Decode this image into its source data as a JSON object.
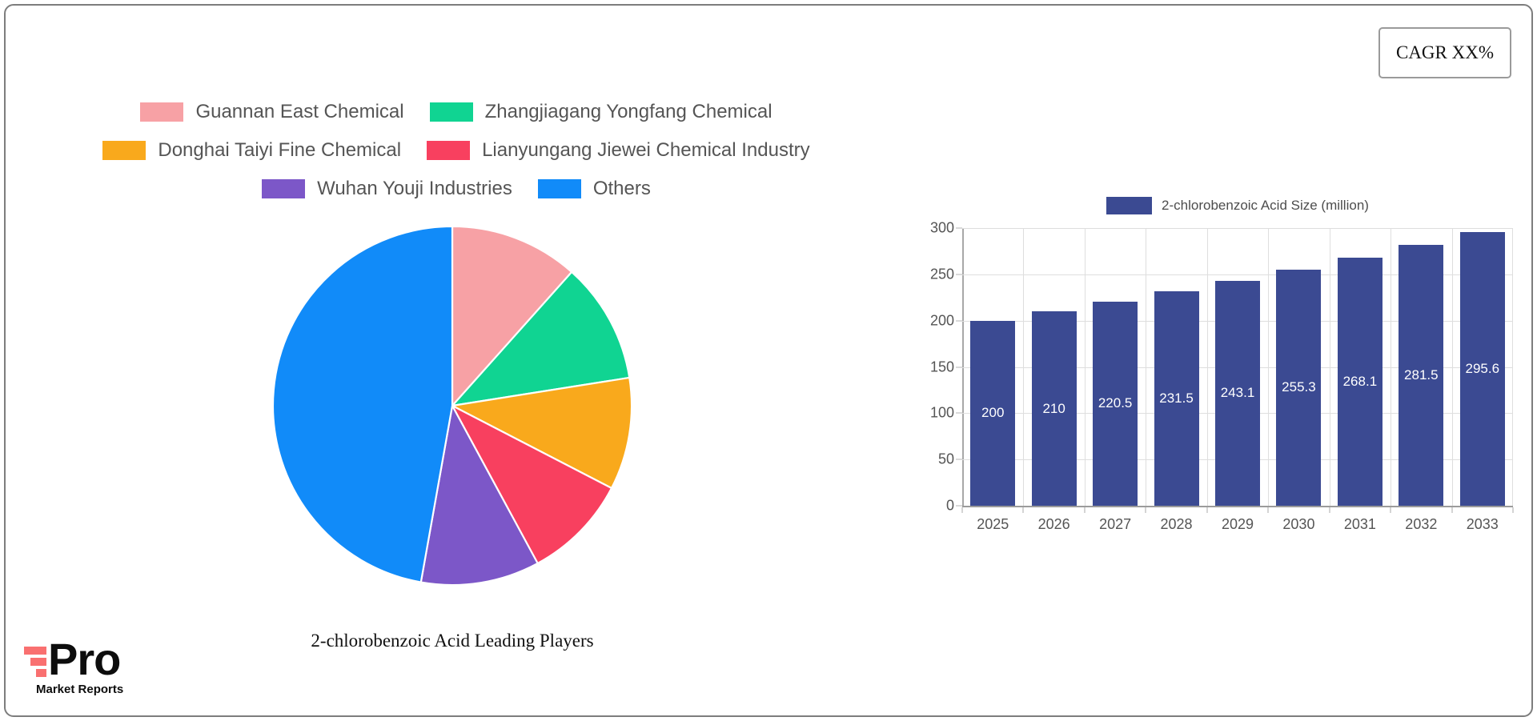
{
  "cagr_badge": "CAGR XX%",
  "logo": {
    "name": "Pro",
    "subtitle": "Market Reports",
    "bar_color": "#F97070"
  },
  "chart_data": [
    {
      "type": "pie",
      "title": "2-chlorobenzoic Acid Leading Players",
      "labels": [
        "Guannan East Chemical",
        "Zhangjiagang Yongfang Chemical",
        "Donghai Taiyi Fine Chemical",
        "Lianyungang Jiewei Chemical Industry",
        "Wuhan Youji Industries",
        "Others"
      ],
      "values_percent": [
        11.6,
        10.9,
        10.1,
        9.5,
        10.7,
        47.2
      ],
      "colors": [
        "#F7A1A5",
        "#10D492",
        "#F9A91C",
        "#F8405F",
        "#7C57C8",
        "#118BF9"
      ],
      "slice_border_color": "#ffffff",
      "legend_position": "top",
      "start_angle_deg": 0,
      "direction": "clockwise"
    },
    {
      "type": "bar",
      "legend_label": "2-chlorobenzoic Acid Size (million)",
      "categories": [
        "2025",
        "2026",
        "2027",
        "2028",
        "2029",
        "2030",
        "2031",
        "2032",
        "2033"
      ],
      "values": [
        200,
        210,
        220.5,
        231.5,
        243.1,
        255.3,
        268.1,
        281.5,
        295.6
      ],
      "bar_color": "#3B4A92",
      "ylim": [
        0,
        300
      ],
      "yticks": [
        0,
        50,
        100,
        150,
        200,
        250,
        300
      ],
      "grid": true,
      "legend_position": "top",
      "value_label_color": "#ffffff"
    }
  ]
}
